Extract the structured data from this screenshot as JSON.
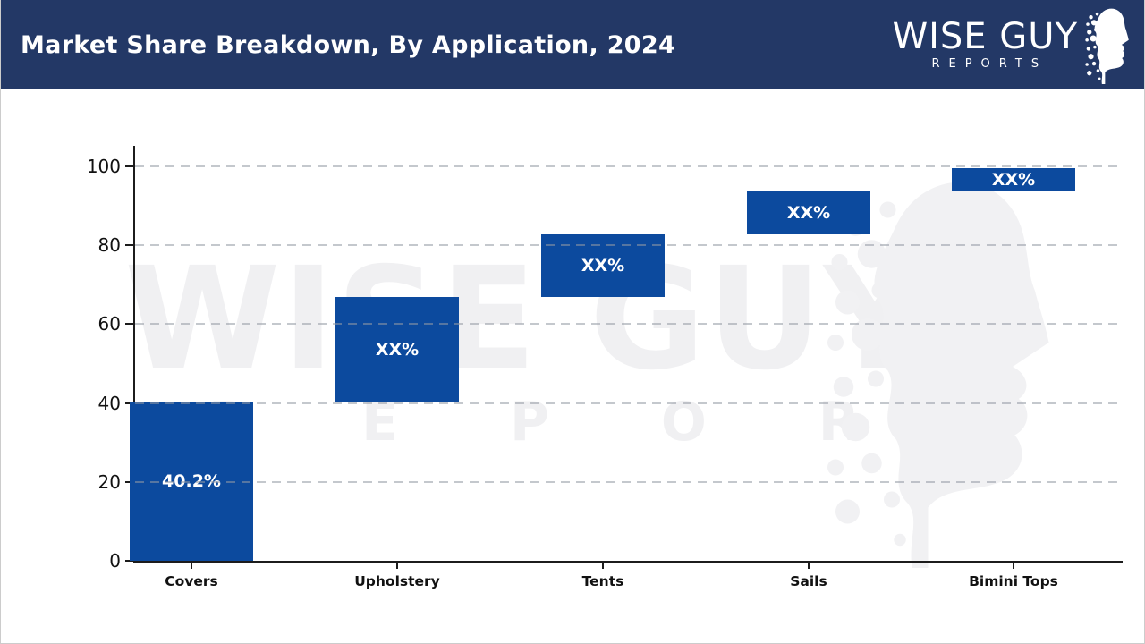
{
  "header": {
    "title": "Market Share Breakdown, By Application, 2024",
    "logo": {
      "line1": "WISE GUY",
      "line2": "REPORTS"
    }
  },
  "watermark": {
    "line1": "WISE GUY",
    "line2": "R E P O R T S"
  },
  "colors": {
    "header_bg": "#233866",
    "bar": "#0c4a9e",
    "bar_label": "#ffffff",
    "axis": "#1c1c1c",
    "grid": "#d4d6da",
    "watermark": "#f0f0f2"
  },
  "chart_data": {
    "type": "bar",
    "subtype": "waterfall",
    "title": "Market Share Breakdown, By Application, 2024",
    "xlabel": "",
    "ylabel": "",
    "categories": [
      "Covers",
      "Upholstery",
      "Tents",
      "Sails",
      "Bimini Tops"
    ],
    "segments": [
      {
        "label": "Covers",
        "start": 0,
        "end": 40.2,
        "text": "40.2%"
      },
      {
        "label": "Upholstery",
        "start": 40.2,
        "end": 66.8,
        "text": "XX%"
      },
      {
        "label": "Tents",
        "start": 66.8,
        "end": 82.7,
        "text": "XX%"
      },
      {
        "label": "Sails",
        "start": 82.7,
        "end": 93.9,
        "text": "XX%"
      },
      {
        "label": "Bimini Tops",
        "start": 93.9,
        "end": 99.5,
        "text": "XX%"
      }
    ],
    "y_ticks": [
      0,
      20,
      40,
      60,
      80,
      100
    ],
    "ylim": [
      0,
      105
    ],
    "grid": "dashed-horizontal",
    "legend": "none"
  }
}
